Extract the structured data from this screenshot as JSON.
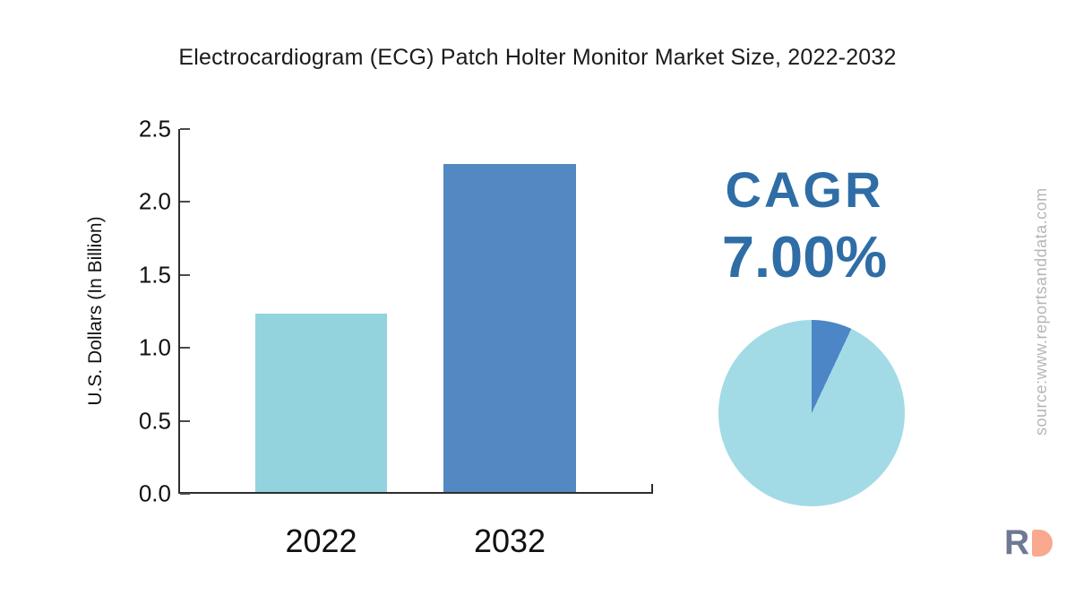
{
  "title": "Electrocardiogram (ECG) Patch Holter Monitor Market Size, 2022-2032",
  "chart_data": [
    {
      "type": "bar",
      "title": "Electrocardiogram (ECG) Patch Holter Monitor Market Size, 2022-2032",
      "categories": [
        "2022",
        "2032"
      ],
      "values": [
        1.23,
        2.26
      ],
      "bar_colors": [
        "#93d3de",
        "#5289c2"
      ],
      "xlabel": "",
      "ylabel": "U.S. Dollars (In Billion)",
      "ylim": [
        0,
        2.5
      ],
      "ytick_labels": [
        "0.0",
        "0.5",
        "1.0",
        "1.5",
        "2.0",
        "2.5"
      ],
      "grid": false,
      "legend": false
    },
    {
      "type": "pie",
      "title": "CAGR 7.00%",
      "labels": [
        "CAGR slice (7%)",
        "remainder (93%)"
      ],
      "values": [
        7,
        93
      ],
      "colors": [
        "#4d86c6",
        "#a2dbe5"
      ],
      "start_angle_deg": 0,
      "direction": "clockwise",
      "legend": false
    }
  ],
  "cagr": {
    "label": "CAGR",
    "value": "7.00%"
  },
  "source_note": "source:www.reportsanddata.com",
  "logo": {
    "r_letter": "R"
  },
  "colors": {
    "bar_2022": "#93d3de",
    "bar_2032": "#5289c2",
    "pie_slice": "#4d86c6",
    "pie_body": "#a2dbe5",
    "cagr_text": "#2f6da6",
    "axis": "#2e2e2e",
    "source_text": "#b6b6b6",
    "logo_r": "#6e7a94",
    "logo_d": "#f9a98e"
  }
}
